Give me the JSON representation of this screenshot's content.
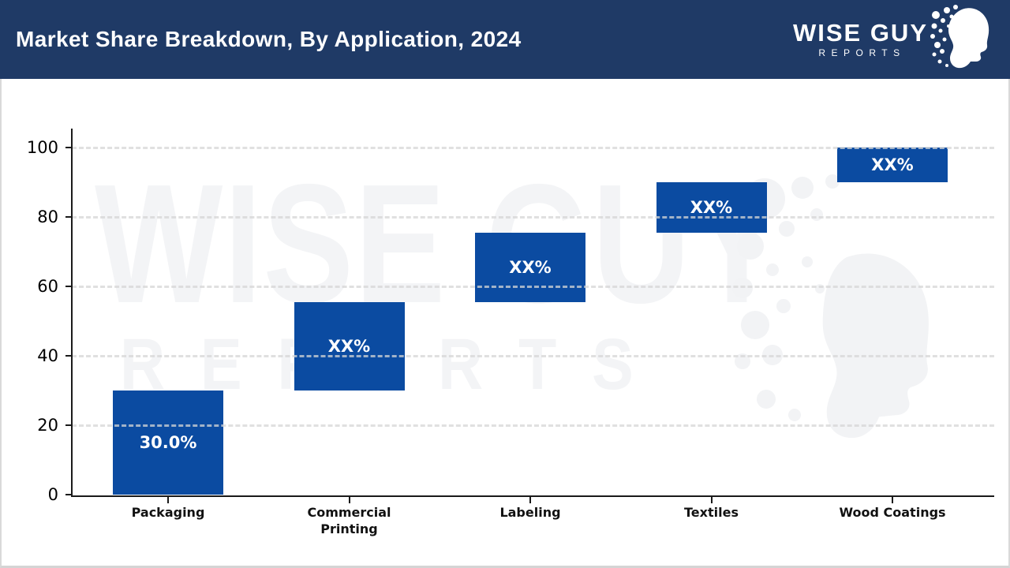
{
  "header": {
    "title": "Market Share Breakdown, By Application, 2024",
    "logo": {
      "line1": "WISE GUY",
      "line2": "REPORTS"
    }
  },
  "watermark": {
    "line1": "WISE GUY",
    "line2": "REPORTS"
  },
  "colors": {
    "header_bg": "#1f3a66",
    "bar": "#0b4ba1",
    "bar_label_text": "#ffffff",
    "gridline": "#d5d5d5",
    "axis": "#1a1a1a",
    "watermark": "#f3f4f6",
    "frame_border": "#d9d9d9"
  },
  "chart_data": {
    "type": "bar",
    "subtype": "floating-waterfall",
    "title": "Market Share Breakdown, By Application, 2024",
    "categories": [
      "Packaging",
      "Commercial Printing",
      "Labeling",
      "Textiles",
      "Wood Coatings"
    ],
    "bars": [
      {
        "category": "Packaging",
        "start": 0,
        "end": 30,
        "label": "30.0%"
      },
      {
        "category": "Commercial Printing",
        "start": 30,
        "end": 55.5,
        "label": "XX%"
      },
      {
        "category": "Labeling",
        "start": 55.5,
        "end": 75.5,
        "label": "XX%"
      },
      {
        "category": "Textiles",
        "start": 75.5,
        "end": 90,
        "label": "XX%"
      },
      {
        "category": "Wood Coatings",
        "start": 90,
        "end": 100,
        "label": "XX%"
      }
    ],
    "ylim": [
      0,
      100
    ],
    "yticks": [
      0,
      20,
      40,
      60,
      80,
      100
    ],
    "xlabel": "",
    "ylabel": "",
    "grid": "horizontal-dashed",
    "legend": "none"
  }
}
